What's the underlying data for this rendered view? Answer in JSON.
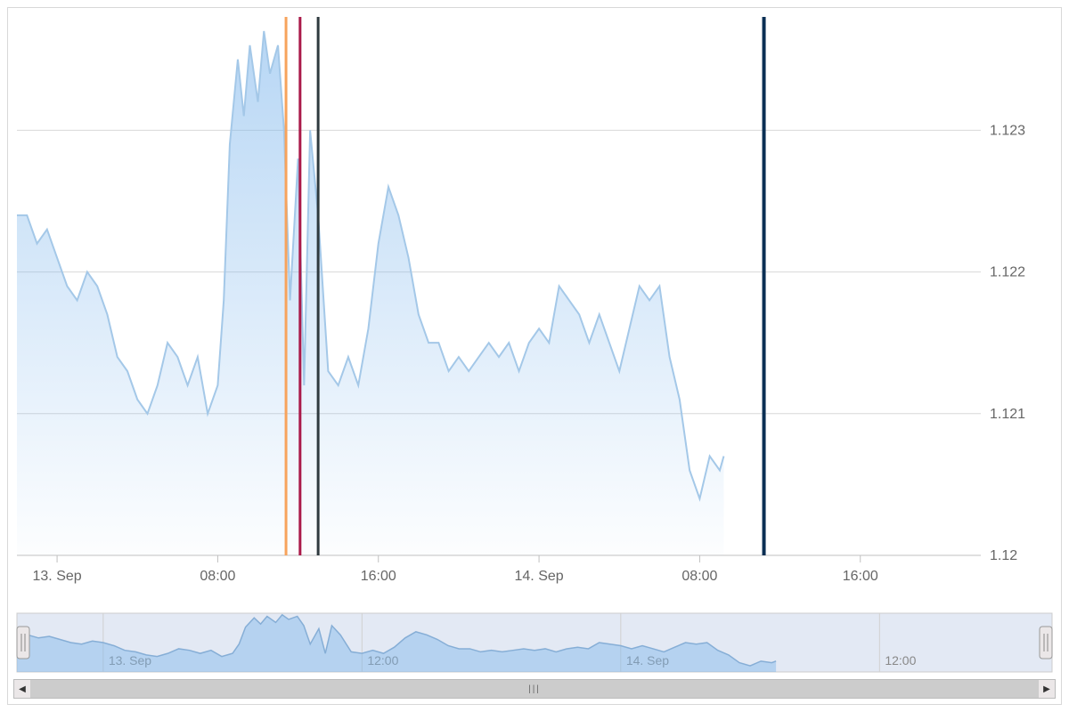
{
  "chart": {
    "type": "area",
    "background_color": "#ffffff",
    "grid_color": "#d8d8d8",
    "axis_fontsize": 16,
    "axis_color": "#666666",
    "line_color": "#a4c8e8",
    "line_width": 2,
    "fill_top_color": "rgba(124,181,236,0.55)",
    "fill_bottom_color": "rgba(124,181,236,0.02)",
    "y": {
      "min": 1.12,
      "max": 1.1238,
      "ticks": [
        1.12,
        1.121,
        1.122,
        1.123
      ],
      "tick_labels": [
        "1.12",
        "1.121",
        "1.122",
        "1.123"
      ]
    },
    "x": {
      "min": 0,
      "max": 48,
      "ticks": [
        2,
        10,
        18,
        26,
        34,
        42
      ],
      "tick_labels": [
        "13. Sep",
        "08:00",
        "16:00",
        "14. Sep",
        "08:00",
        "16:00"
      ]
    },
    "vertical_lines": [
      {
        "x": 13.4,
        "color": "#f7a35c",
        "width": 3
      },
      {
        "x": 14.1,
        "color": "#aa1a4a",
        "width": 3
      },
      {
        "x": 15.0,
        "color": "#2f3a3f",
        "width": 3
      },
      {
        "x": 37.2,
        "color": "#0b2f54",
        "width": 4
      }
    ],
    "series": [
      [
        0,
        1.1224
      ],
      [
        0.5,
        1.1224
      ],
      [
        1,
        1.1222
      ],
      [
        1.5,
        1.1223
      ],
      [
        2,
        1.1221
      ],
      [
        2.5,
        1.1219
      ],
      [
        3,
        1.1218
      ],
      [
        3.5,
        1.122
      ],
      [
        4,
        1.1219
      ],
      [
        4.5,
        1.1217
      ],
      [
        5,
        1.1214
      ],
      [
        5.5,
        1.1213
      ],
      [
        6,
        1.1211
      ],
      [
        6.5,
        1.121
      ],
      [
        7,
        1.1212
      ],
      [
        7.5,
        1.1215
      ],
      [
        8,
        1.1214
      ],
      [
        8.5,
        1.1212
      ],
      [
        9,
        1.1214
      ],
      [
        9.5,
        1.121
      ],
      [
        10,
        1.1212
      ],
      [
        10.3,
        1.1218
      ],
      [
        10.6,
        1.1229
      ],
      [
        11,
        1.1235
      ],
      [
        11.3,
        1.1231
      ],
      [
        11.6,
        1.1236
      ],
      [
        12,
        1.1232
      ],
      [
        12.3,
        1.1237
      ],
      [
        12.6,
        1.1234
      ],
      [
        13,
        1.1236
      ],
      [
        13.3,
        1.123
      ],
      [
        13.6,
        1.1218
      ],
      [
        14,
        1.1228
      ],
      [
        14.3,
        1.1212
      ],
      [
        14.6,
        1.123
      ],
      [
        15,
        1.1224
      ],
      [
        15.5,
        1.1213
      ],
      [
        16,
        1.1212
      ],
      [
        16.5,
        1.1214
      ],
      [
        17,
        1.1212
      ],
      [
        17.5,
        1.1216
      ],
      [
        18,
        1.1222
      ],
      [
        18.5,
        1.1226
      ],
      [
        19,
        1.1224
      ],
      [
        19.5,
        1.1221
      ],
      [
        20,
        1.1217
      ],
      [
        20.5,
        1.1215
      ],
      [
        21,
        1.1215
      ],
      [
        21.5,
        1.1213
      ],
      [
        22,
        1.1214
      ],
      [
        22.5,
        1.1213
      ],
      [
        23,
        1.1214
      ],
      [
        23.5,
        1.1215
      ],
      [
        24,
        1.1214
      ],
      [
        24.5,
        1.1215
      ],
      [
        25,
        1.1213
      ],
      [
        25.5,
        1.1215
      ],
      [
        26,
        1.1216
      ],
      [
        26.5,
        1.1215
      ],
      [
        27,
        1.1219
      ],
      [
        27.5,
        1.1218
      ],
      [
        28,
        1.1217
      ],
      [
        28.5,
        1.1215
      ],
      [
        29,
        1.1217
      ],
      [
        29.5,
        1.1215
      ],
      [
        30,
        1.1213
      ],
      [
        30.5,
        1.1216
      ],
      [
        31,
        1.1219
      ],
      [
        31.5,
        1.1218
      ],
      [
        32,
        1.1219
      ],
      [
        32.5,
        1.1214
      ],
      [
        33,
        1.1211
      ],
      [
        33.5,
        1.1206
      ],
      [
        34,
        1.1204
      ],
      [
        34.5,
        1.1207
      ],
      [
        35,
        1.1206
      ],
      [
        35.2,
        1.1207
      ]
    ]
  },
  "navigator": {
    "background_color": "#f7f7f7",
    "mask_color": "rgba(102,133,194,0.18)",
    "outline_color": "#cccccc",
    "line_color": "#86aed6",
    "fill_color": "rgba(124,181,236,0.45)",
    "handle_fill": "#ebe7e8",
    "handle_stroke": "#999999",
    "x_ticks": [
      4,
      16,
      28,
      40
    ],
    "x_labels": [
      "13. Sep",
      "12:00",
      "14. Sep",
      "12:00"
    ],
    "label_fontsize": 14,
    "label_color": "#888888"
  },
  "scrollbar": {
    "left_arrow": "◀",
    "right_arrow": "▶",
    "grip": "|||"
  }
}
